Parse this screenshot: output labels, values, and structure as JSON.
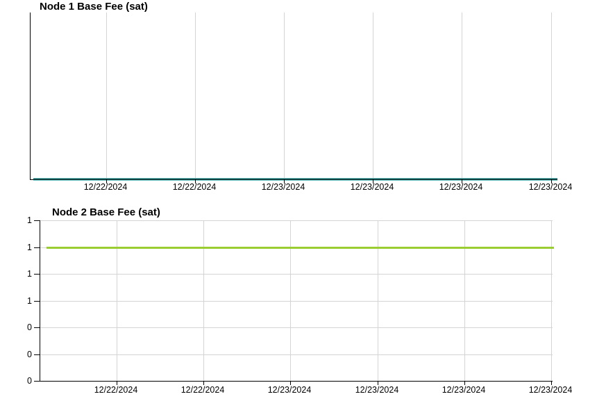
{
  "page": {
    "background": "#ffffff"
  },
  "chart_data": [
    {
      "type": "line",
      "title": "Node 1 Base Fee (sat)",
      "x": [
        "12/22/2024",
        "12/22/2024",
        "12/23/2024",
        "12/23/2024",
        "12/23/2024",
        "12/23/2024"
      ],
      "series": [
        {
          "name": "Node 1 Base Fee (sat)",
          "values": [
            0,
            0,
            0,
            0,
            0,
            0
          ],
          "color": "#35a2a2"
        }
      ],
      "y_axis": {
        "labels_shown": [],
        "min": 0
      },
      "grid": {
        "vertical": true,
        "horizontal": false
      },
      "legend": "none",
      "line_position": "flat along x-axis at y=0"
    },
    {
      "type": "line",
      "title": "Node 2 Base Fee (sat)",
      "x": [
        "12/22/2024",
        "12/22/2024",
        "12/23/2024",
        "12/23/2024",
        "12/23/2024",
        "12/23/2024"
      ],
      "series": [
        {
          "name": "Node 2 Base Fee (sat)",
          "values": [
            1,
            1,
            1,
            1,
            1,
            1
          ],
          "color": "#9acd32"
        }
      ],
      "y_axis": {
        "labels_shown": [
          "1",
          "1",
          "1",
          "1",
          "0",
          "0",
          "0"
        ],
        "tick_values": [
          1.2,
          1.0,
          0.8,
          0.6,
          0.4,
          0.2,
          0.0
        ],
        "min": 0,
        "max": 1.2
      },
      "grid": {
        "vertical": true,
        "horizontal": true
      },
      "legend": "none",
      "line_position": "flat horizontal line at y=1"
    }
  ],
  "colors": {
    "gridline": "#d4d4d4",
    "axis": "#000000",
    "node1_line": "#35a2a2",
    "node2_line": "#9acd32",
    "text": "#000000"
  }
}
